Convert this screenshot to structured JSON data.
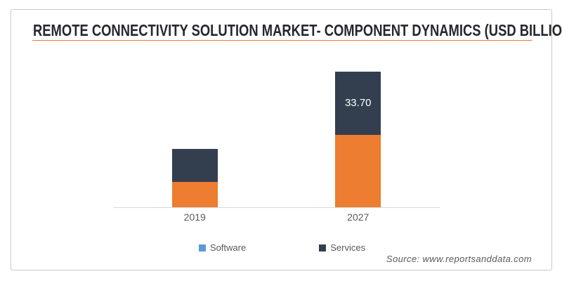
{
  "header": {
    "title": "REMOTE CONNECTIVITY SOLUTION MARKET- COMPONENT DYNAMICS (USD BILLION)"
  },
  "footer": {
    "source": "Source: www.reportsanddata.com"
  },
  "colors": {
    "title_text": "#24292e",
    "title_underline": "#e87b30",
    "axis_line": "#d9d9d9",
    "tick_label": "#595959",
    "legend_label": "#595959",
    "source_text": "#595959",
    "bar_label_text": "#ffffff",
    "card_border": "#c9c9c9",
    "software_bar": "#ed7d31",
    "software_legend_swatch": "#5b9bd5",
    "services_bar": "#333f4e"
  },
  "chart_data": {
    "type": "bar",
    "stacked": true,
    "title": "REMOTE CONNECTIVITY SOLUTION MARKET- COMPONENT DYNAMICS (USD BILLION)",
    "value_unit": "USD Billion",
    "categories": [
      "2019",
      "2027"
    ],
    "series": [
      {
        "name": "Software",
        "bar_color": "#ed7d31",
        "legend_color": "#5b9bd5",
        "values": [
          6.3,
          18.0
        ],
        "labels": [
          null,
          null
        ]
      },
      {
        "name": "Services",
        "bar_color": "#333f4e",
        "legend_color": "#333f4e",
        "values": [
          8.2,
          15.7
        ],
        "labels": [
          null,
          "33.70"
        ]
      }
    ],
    "totals": [
      14.5,
      33.7
    ],
    "visible_data_labels": [
      "33.70"
    ],
    "ylim": [
      0,
      33.7
    ],
    "gridlines": false,
    "y_axis_ticks": false,
    "legend_position": "bottom-center",
    "note": "Only the 33.70 label is printed on the chart; remaining values are estimated from bar segment proportions."
  }
}
